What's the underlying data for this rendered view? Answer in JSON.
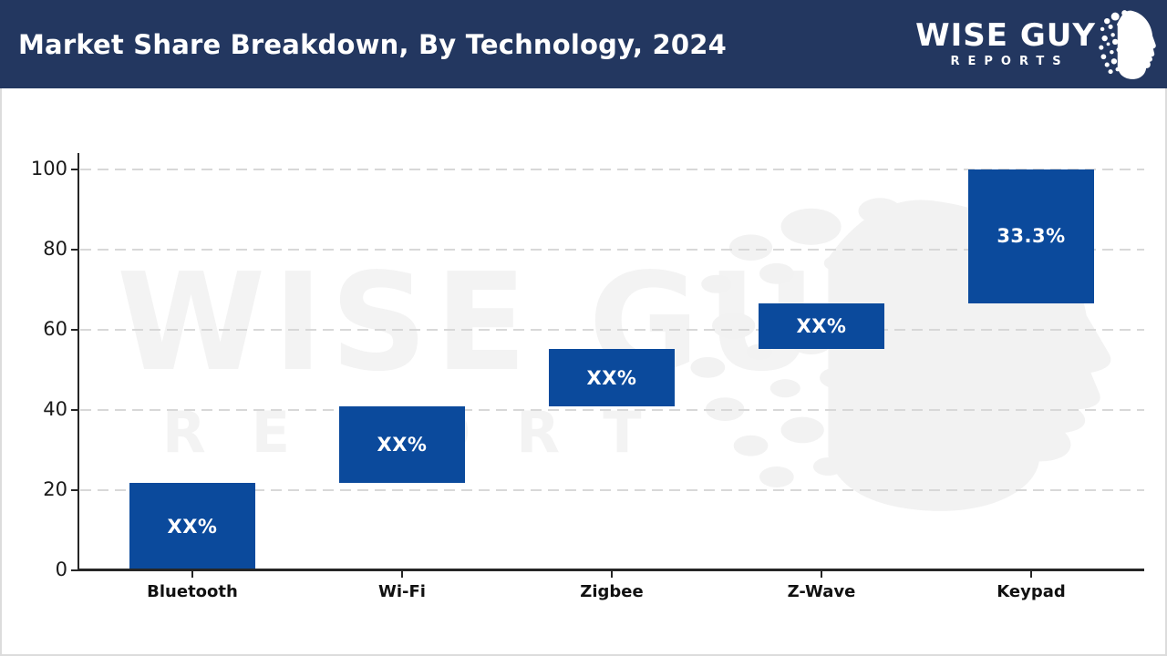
{
  "header": {
    "title": "Market Share Breakdown, By Technology, 2024",
    "brand": {
      "line1": "WISE GUY",
      "line2": "REPORTS"
    },
    "bg_color": "#233760"
  },
  "watermark": {
    "line1": "WISE GU",
    "line2": "REPORT"
  },
  "chart_data": {
    "type": "bar",
    "subtype": "waterfall",
    "title": "Market Share Breakdown, By Technology, 2024",
    "categories": [
      "Bluetooth",
      "Wi-Fi",
      "Zigbee",
      "Z-Wave",
      "Keypad"
    ],
    "segments": [
      {
        "category": "Bluetooth",
        "start": 0,
        "end": 21.8,
        "label": "XX%"
      },
      {
        "category": "Wi-Fi",
        "start": 21.8,
        "end": 40.8,
        "label": "XX%"
      },
      {
        "category": "Zigbee",
        "start": 40.8,
        "end": 55.2,
        "label": "XX%"
      },
      {
        "category": "Z-Wave",
        "start": 55.2,
        "end": 66.7,
        "label": "XX%"
      },
      {
        "category": "Keypad",
        "start": 66.7,
        "end": 100,
        "label": "33.3%"
      }
    ],
    "xlabel": "",
    "ylabel": "",
    "ylim": [
      0,
      104
    ],
    "yticks": [
      0,
      20,
      40,
      60,
      80,
      100
    ],
    "grid": "horizontal-dashed",
    "legend": "none",
    "bar_color": "#0b4a9c",
    "bar_label_color": "#ffffff"
  }
}
